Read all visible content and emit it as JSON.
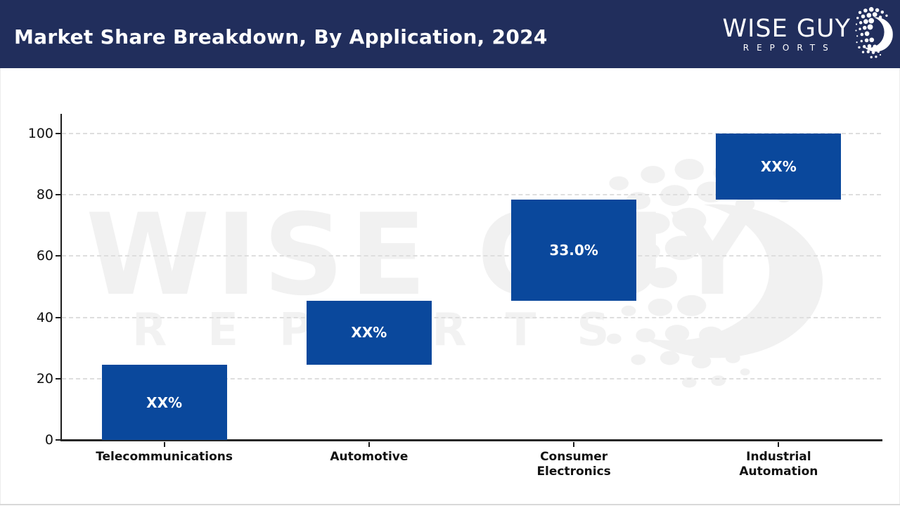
{
  "header": {
    "title": "Market Share Breakdown, By Application, 2024",
    "logo": {
      "line1": "WISE GUY",
      "line2": "REPORTS"
    }
  },
  "watermark": {
    "line1": "WISE GUY",
    "line2": "REPORTS"
  },
  "chart_data": {
    "type": "bar",
    "subtype": "waterfall-floating-segments",
    "title": "Market Share Breakdown, By Application, 2024",
    "categories": [
      "Telecommunications",
      "Automotive",
      "Consumer\nElectronics",
      "Industrial\nAutomation"
    ],
    "segments": [
      {
        "category": "Telecommunications",
        "start": 0,
        "end": 24.5,
        "label": "XX%"
      },
      {
        "category": "Automotive",
        "start": 24.5,
        "end": 45.5,
        "label": "XX%"
      },
      {
        "category": "Consumer Electronics",
        "start": 45.5,
        "end": 78.5,
        "label": "33.0%",
        "value": 33.0
      },
      {
        "category": "Industrial Automation",
        "start": 78.5,
        "end": 100,
        "label": "XX%"
      }
    ],
    "ylim": [
      0,
      100
    ],
    "yticks": [
      0,
      20,
      40,
      60,
      80,
      100
    ],
    "xlabel": "",
    "ylabel": "",
    "grid": "horizontal-dashed",
    "legend": "none",
    "bar_color": "#0a489c",
    "bar_label_color": "#ffffff"
  },
  "colors": {
    "header_bg": "#212e5c",
    "bar": "#0a489c",
    "axis": "#1c1c1c",
    "gridline": "#dedede",
    "watermark": "#f1f1f1",
    "background": "#ffffff"
  }
}
